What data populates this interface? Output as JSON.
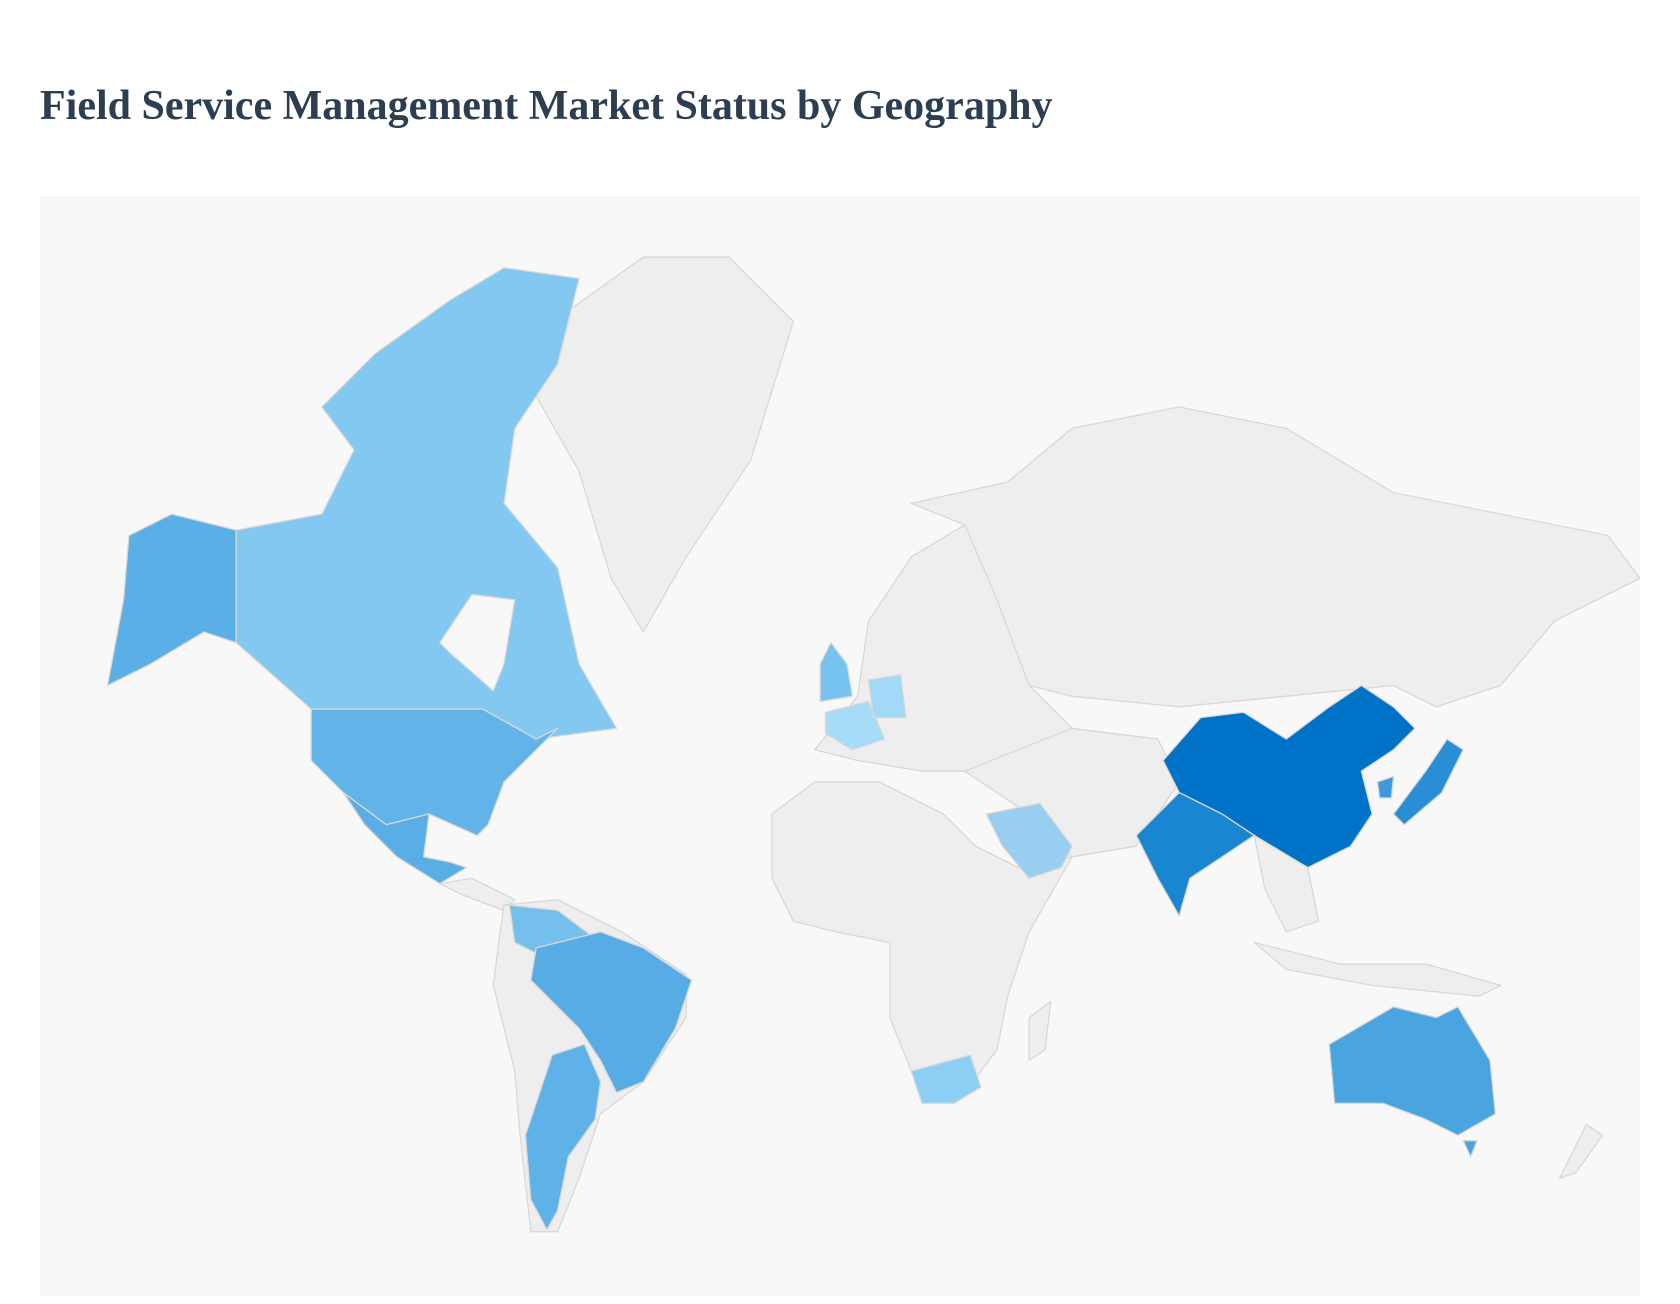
{
  "title": "Field Service Management Market Status by Geography"
}
